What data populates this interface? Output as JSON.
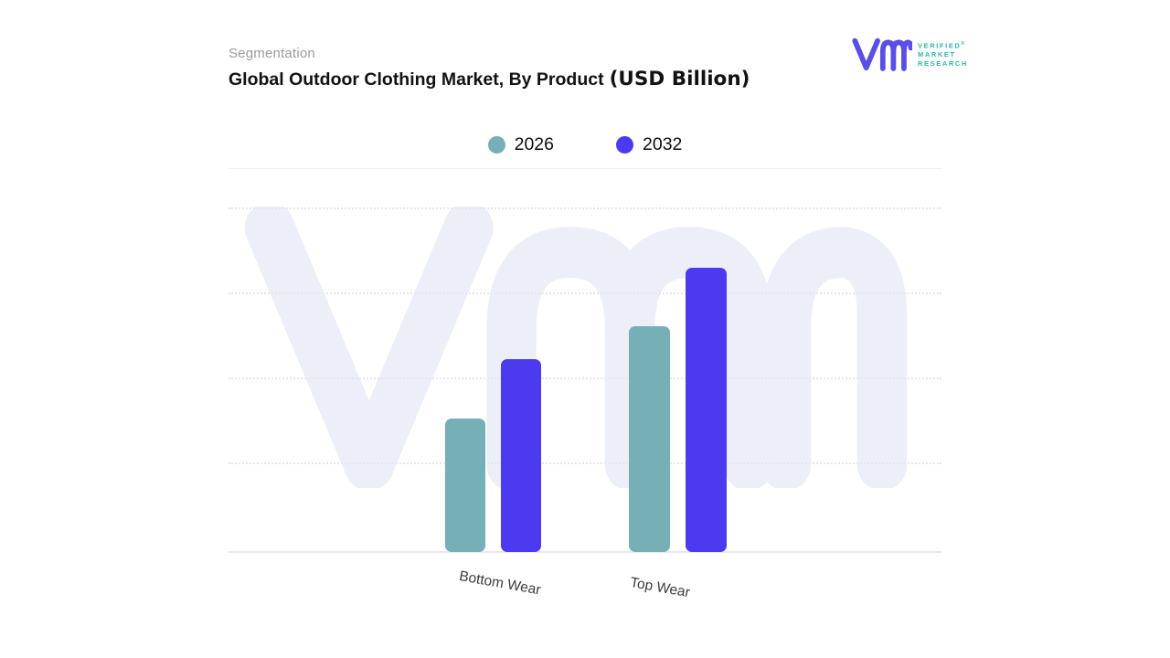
{
  "header": {
    "eyebrow": "Segmentation",
    "title_main": "Global Outdoor Clothing Market, By Product",
    "title_unit": "(USD Billion)"
  },
  "logo": {
    "mark_name": "vmr-logo-mark",
    "lines": [
      "VERIFIED",
      "MARKET",
      "RESEARCH"
    ],
    "registered_symbol": "®",
    "mark_color": "#5b4ee4",
    "text_color": "#2eb4a6"
  },
  "chart_data": {
    "type": "bar",
    "title": "Global Outdoor Clothing Market, By Product (USD Billion)",
    "categories": [
      "Bottom Wear",
      "Top Wear"
    ],
    "series": [
      {
        "name": "2026",
        "color": "#76afb5",
        "values": [
          1.56,
          2.65
        ]
      },
      {
        "name": "2032",
        "color": "#4b3af0",
        "values": [
          2.26,
          3.33
        ]
      }
    ],
    "value_units": "relative gridline units (1.0 = one gridline interval; y-axis has no numeric labels in source)",
    "ylim": [
      0,
      4.04
    ],
    "xlabel": "",
    "ylabel": "",
    "grid": "4 dashed horizontal gridlines, unlabeled",
    "legend_position": "top-center",
    "watermark_text": "vmr"
  },
  "colors": {
    "series_2026": "#76afb5",
    "series_2032": "#4b3af0",
    "watermark": "#edeff8",
    "gridline": "#e4e5ee",
    "axis_line": "#e9e9ec",
    "eyebrow_text": "#9b9b9b",
    "title_text": "#121212"
  }
}
